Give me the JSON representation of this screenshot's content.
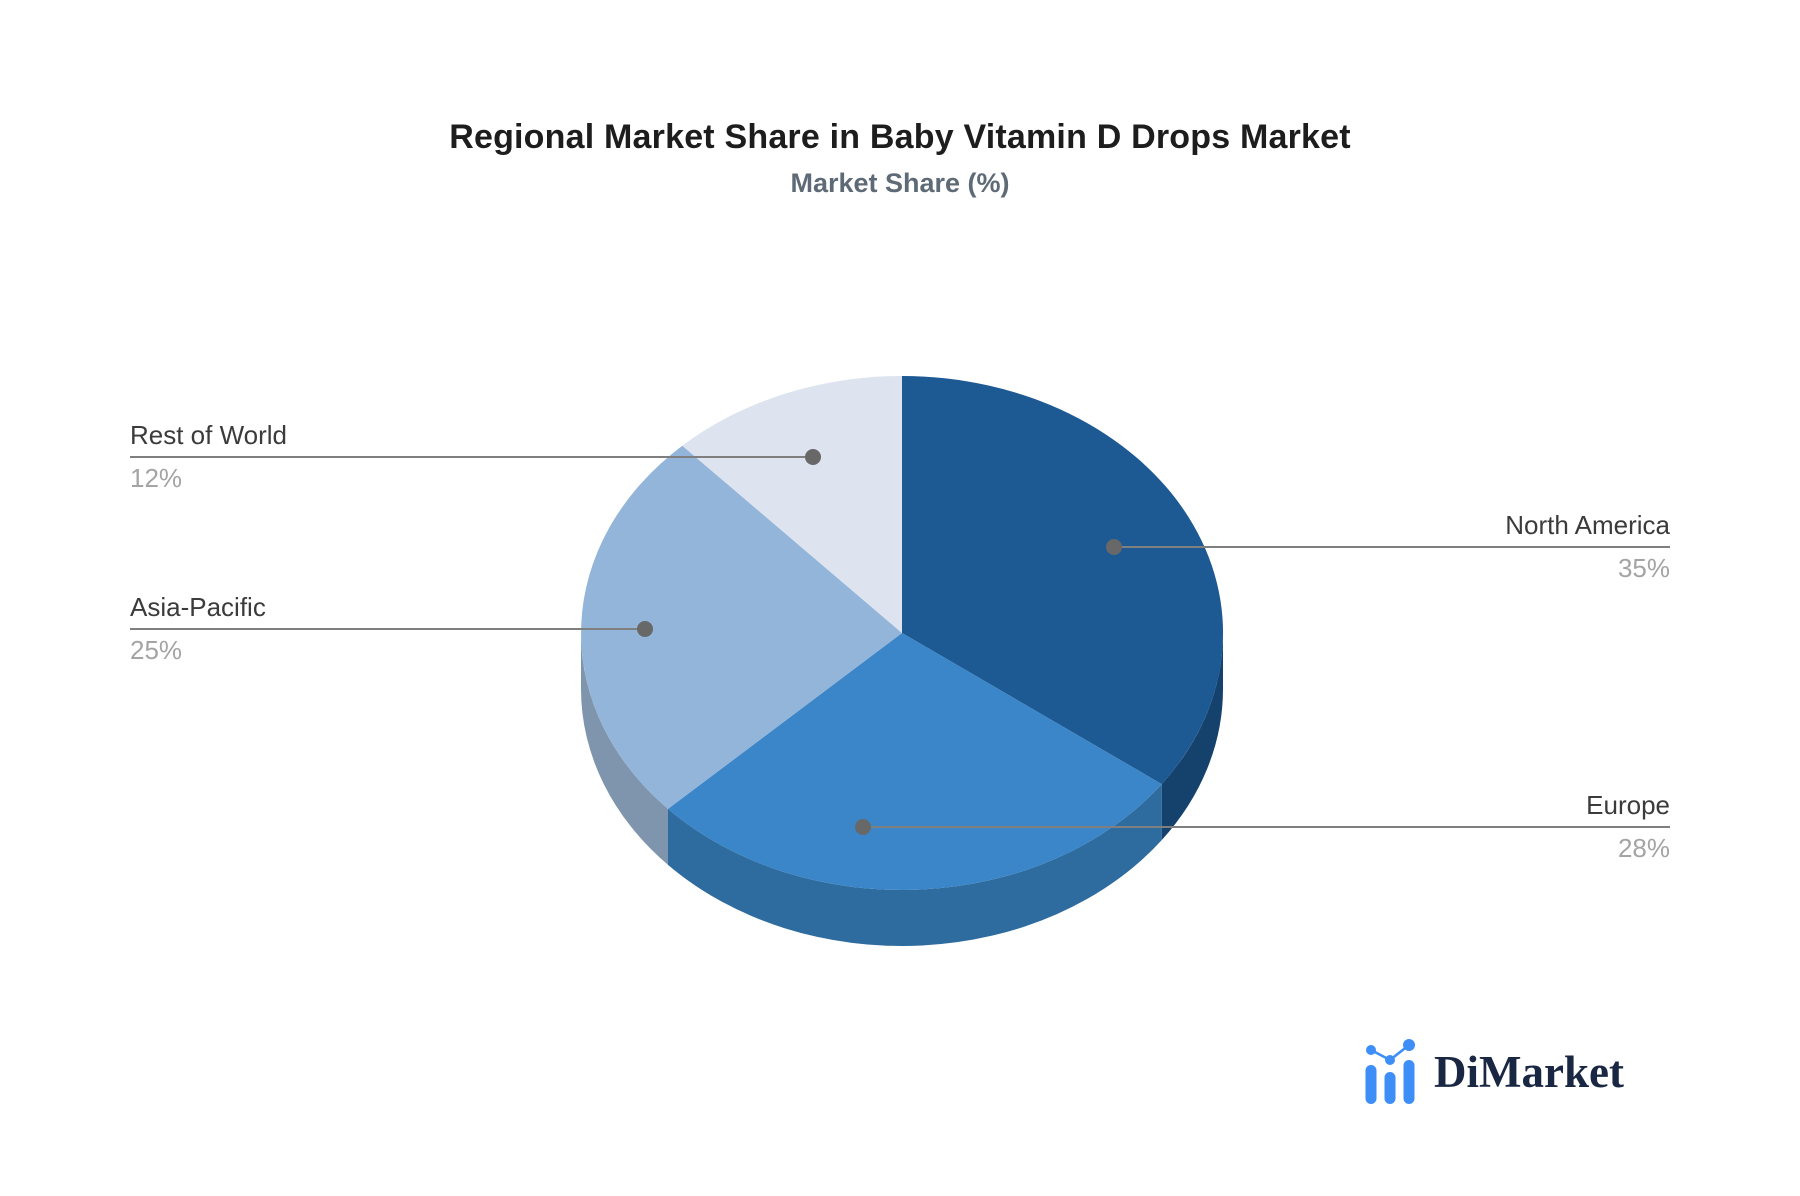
{
  "chart_data": {
    "type": "pie",
    "style": "3d",
    "title": "Regional Market Share in Baby Vitamin D Drops Market",
    "subtitle": "Market Share (%)",
    "unit": "%",
    "categories": [
      "North America",
      "Europe",
      "Asia-Pacific",
      "Rest of World"
    ],
    "values": [
      35,
      28,
      25,
      12
    ],
    "slice_colors": [
      "#1d5a94",
      "#3a86c8",
      "#93b5d9",
      "#dde4ef"
    ],
    "slice_side_colors": [
      "#15426d",
      "#2e6b9f",
      "#7e95ad",
      "#b9c4d4"
    ],
    "start_angle_deg": 0,
    "direction": "clockwise",
    "legend_position": "none",
    "callouts": {
      "north_america": {
        "label": "North America",
        "value_label": "35%"
      },
      "europe": {
        "label": "Europe",
        "value_label": "28%"
      },
      "asia_pacific": {
        "label": "Asia-Pacific",
        "value_label": "25%"
      },
      "rest_of_world": {
        "label": "Rest of World",
        "value_label": "12%"
      }
    }
  },
  "logo": {
    "text": "DiMarket",
    "icon": "bar-line-chart-icon",
    "icon_color": "#3e8ef7",
    "text_color": "#1a2742"
  },
  "style_colors": {
    "connector_line": "#7f7f7f",
    "connector_dot": "#686868",
    "label_text": "#3b3b3b",
    "pct_text": "#a4a4a4",
    "title_text": "#1d1d1d",
    "subtitle_text": "#5e6b77"
  }
}
